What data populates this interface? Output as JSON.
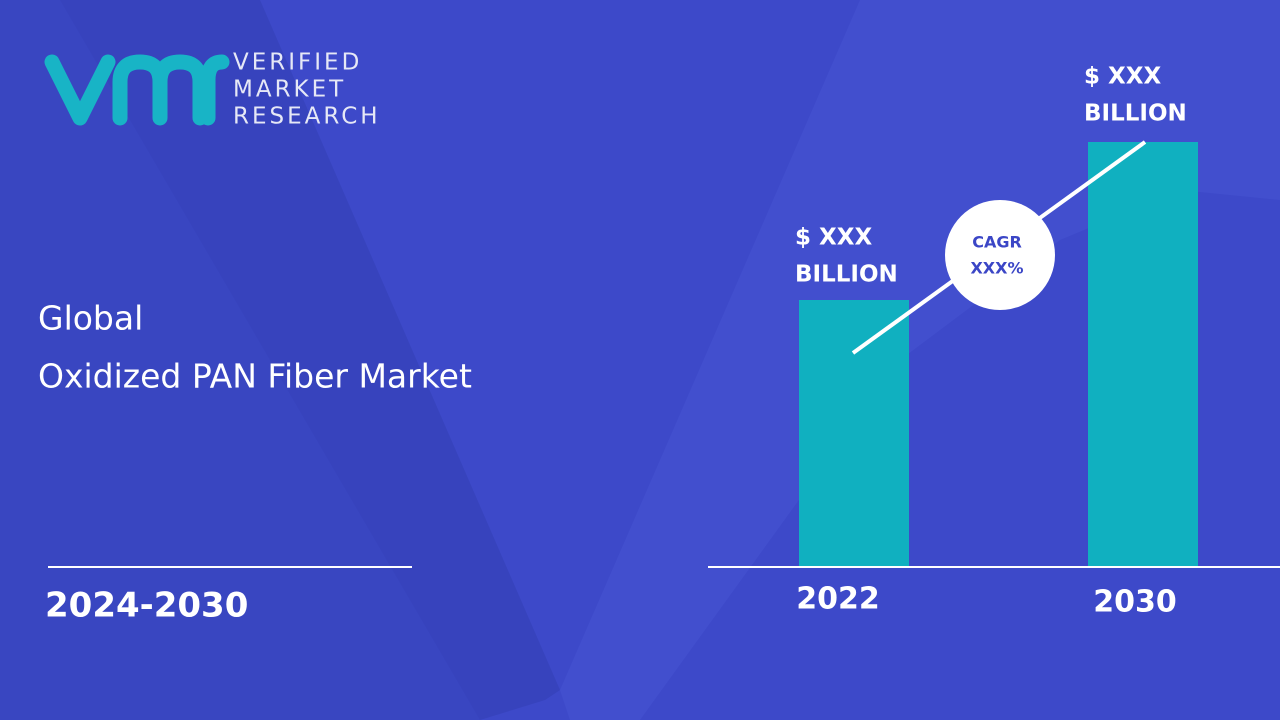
{
  "logo": {
    "lines": [
      "VERIFIED",
      "MARKET",
      "RESEARCH"
    ]
  },
  "title": {
    "lines": [
      "Global",
      "Oxidized PAN Fiber Market"
    ]
  },
  "period": "2024-2030",
  "bars": [
    {
      "label": "2022",
      "value_lines": [
        "$ XXX",
        "BILLION"
      ]
    },
    {
      "label": "2030",
      "value_lines": [
        "$ XXX",
        "BILLION"
      ]
    }
  ],
  "cagr": {
    "lines": [
      "CAGR",
      "XXX%"
    ]
  }
}
